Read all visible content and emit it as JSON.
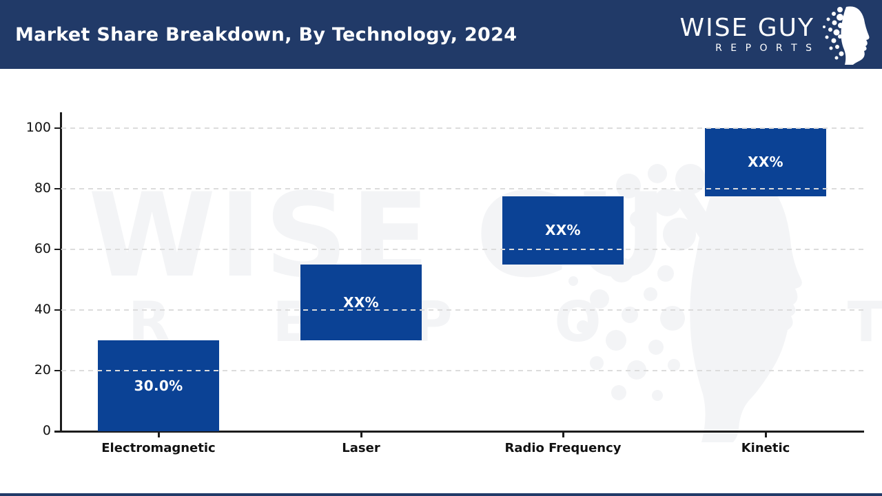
{
  "header": {
    "title": "Market Share Breakdown, By Technology, 2024",
    "logo": {
      "line1": "WISE GUY",
      "line2": "R E P O R T S"
    }
  },
  "watermark": {
    "line1": "WISE GUY",
    "line2": "R E P O R T S"
  },
  "chart_data": {
    "type": "bar",
    "subtype": "waterfall",
    "title": "Market Share Breakdown, By Technology, 2024",
    "xlabel": "",
    "ylabel": "",
    "categories": [
      "Electromagnetic",
      "Laser",
      "Radio Frequency",
      "Kinetic"
    ],
    "segments": [
      {
        "category": "Electromagnetic",
        "start": 0,
        "end": 30,
        "value_label": "30.0%"
      },
      {
        "category": "Laser",
        "start": 30,
        "end": 55,
        "value_label": "XX%"
      },
      {
        "category": "Radio Frequency",
        "start": 55,
        "end": 77.5,
        "value_label": "XX%"
      },
      {
        "category": "Kinetic",
        "start": 77.5,
        "end": 100,
        "value_label": "XX%"
      }
    ],
    "yticks": [
      0,
      20,
      40,
      60,
      80,
      100
    ],
    "ylim": [
      0,
      105
    ],
    "grid": "horizontal-dashed",
    "legend": "none"
  },
  "colors": {
    "header_bg": "#213a68",
    "footer_bg": "#213a68",
    "canvas_bg": "#ffffff",
    "bar": "#0b4295",
    "bar_label_text": "#ffffff",
    "axis": "#1c1c1c",
    "gridline": "#dcdcdc",
    "watermark": "#f3f4f6",
    "title_text": "#ffffff"
  }
}
